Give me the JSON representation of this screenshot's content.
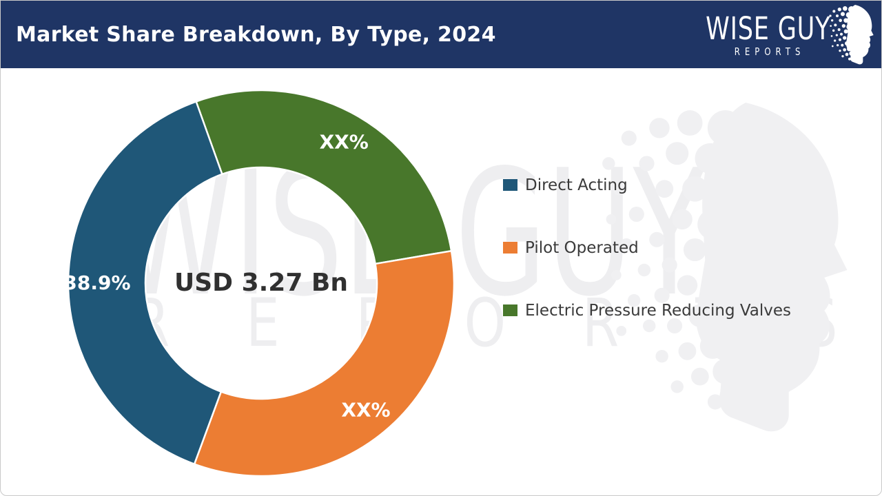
{
  "header": {
    "title": "Market Share Breakdown, By Type, 2024"
  },
  "logo": {
    "line1": "WISE GUY",
    "line2": "REPORTS"
  },
  "watermark": {
    "line1": "WISE GUY",
    "line2": "R E P O R T S"
  },
  "colors": {
    "header_bg": "#1f3565",
    "direct_acting": "#1f5778",
    "pilot_operated": "#ec7d33",
    "electric_prv": "#48772b",
    "center_text": "#303030",
    "legend_text": "#3a3a3a",
    "border": "#c9c9c9",
    "watermark": "#eeeef0"
  },
  "chart_data": {
    "type": "pie",
    "variant": "donut",
    "title": "Market Share Breakdown, By Type, 2024",
    "center_label": "USD 3.27 Bn",
    "legend_position": "right",
    "direction": "clockwise",
    "rotation_deg": 109.7,
    "inner_radius_ratio": 0.6,
    "draw_order": [
      2,
      1,
      0
    ],
    "segments": [
      {
        "label": "Direct Acting",
        "value": 38.9,
        "display_pct": "38.9%",
        "color": "#1f5778"
      },
      {
        "label": "Pilot Operated",
        "value": 33.3,
        "display_pct": "XX%",
        "color": "#ec7d33"
      },
      {
        "label": "Electric Pressure Reducing Valves",
        "value": 27.8,
        "display_pct": "XX%",
        "color": "#48772b"
      }
    ]
  }
}
